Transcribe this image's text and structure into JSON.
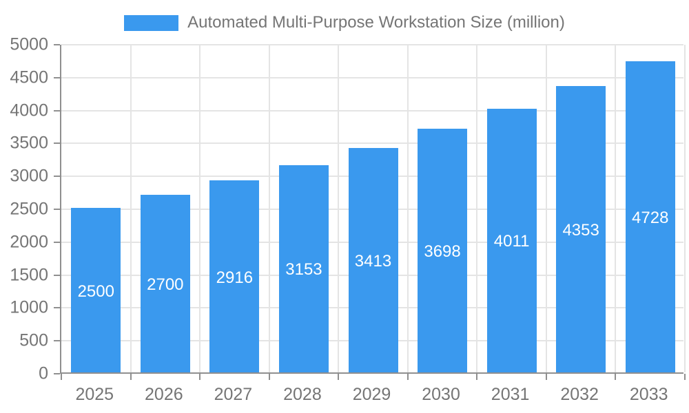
{
  "legend": {
    "label": "Automated Multi-Purpose Workstation Size (million)"
  },
  "colors": {
    "bar": "#3A99EE",
    "grid": "#E4E4E4",
    "axis": "#8F8F8F",
    "text": "#757575",
    "bar_label": "#FFFFFF"
  },
  "chart_data": {
    "type": "bar",
    "title": "",
    "xlabel": "",
    "ylabel": "",
    "categories": [
      "2025",
      "2026",
      "2027",
      "2028",
      "2029",
      "2030",
      "2031",
      "2032",
      "2033"
    ],
    "series": [
      {
        "name": "Automated Multi-Purpose Workstation Size (million)",
        "values": [
          2500,
          2700,
          2916,
          3153,
          3413,
          3698,
          4011,
          4353,
          4728
        ]
      }
    ],
    "ylim": [
      0,
      5000
    ],
    "y_ticks": [
      0,
      500,
      1000,
      1500,
      2000,
      2500,
      3000,
      3500,
      4000,
      4500,
      5000
    ],
    "grid": true,
    "legend_position": "top",
    "bar_label_position": "inside-center"
  }
}
